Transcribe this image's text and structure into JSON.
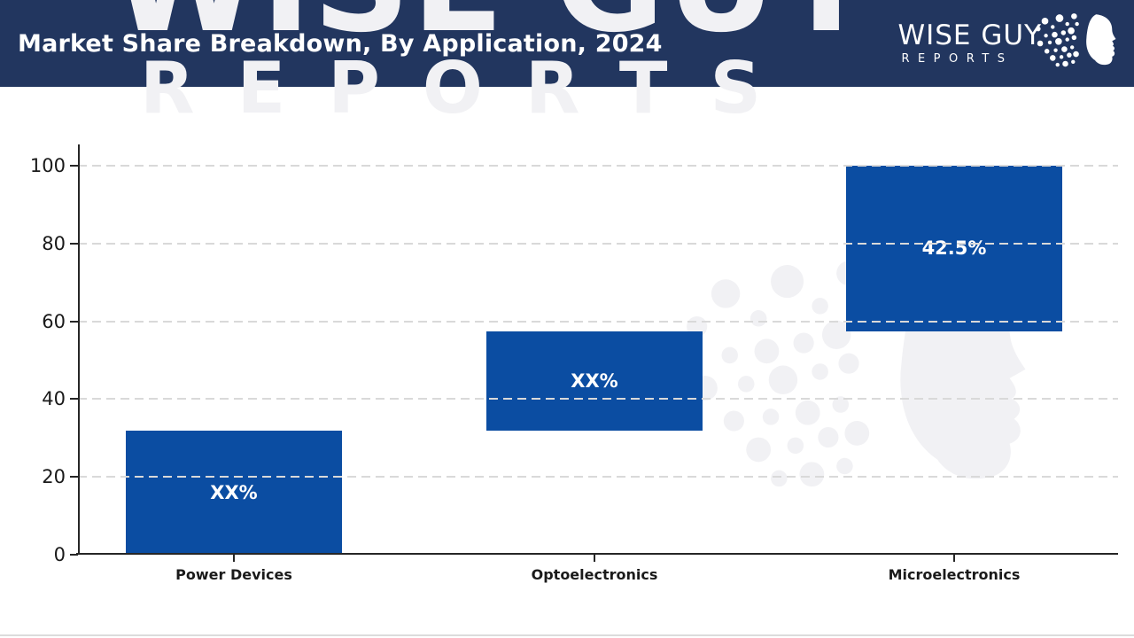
{
  "header": {
    "title": "Market Share Breakdown, By Application, 2024",
    "logo": {
      "line1": "WISE GUY",
      "line2": "REPORTS"
    }
  },
  "watermark": {
    "line1": "WISE GUY",
    "line2": "REPORTS"
  },
  "chart_data": {
    "type": "bar",
    "variant": "stepped-waterfall-segments",
    "title": "Market Share Breakdown, By Application, 2024",
    "categories": [
      "Power Devices",
      "Optoelectronics",
      "Microelectronics"
    ],
    "bars": [
      {
        "category": "Power Devices",
        "label": "XX%",
        "start": 0,
        "end": 32
      },
      {
        "category": "Optoelectronics",
        "label": "XX%",
        "start": 32,
        "end": 57.5
      },
      {
        "category": "Microelectronics",
        "label": "42.5%",
        "start": 57.5,
        "end": 100
      }
    ],
    "yticks": [
      0,
      20,
      40,
      60,
      80,
      100
    ],
    "ylim": [
      0,
      105
    ],
    "xlabel": "",
    "ylabel": "",
    "legend": null,
    "grid": "horizontal-dashed",
    "grid_above_bars": true,
    "colors": {
      "bar": "#0b4da2",
      "bar_label": "#ffffff",
      "axis": "#262626",
      "grid": "#d9d9d9",
      "header_bg": "#22365f",
      "header_text": "#ffffff",
      "tick_label": "#1a1a1a",
      "watermark": "#f1f1f4"
    }
  }
}
